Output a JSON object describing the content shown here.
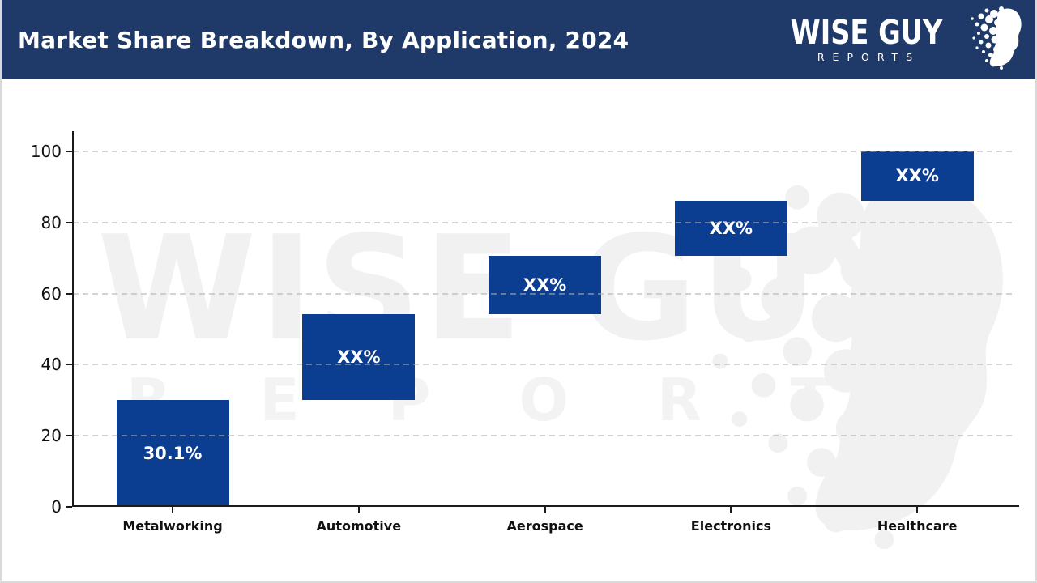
{
  "header": {
    "title": "Market Share Breakdown, By Application, 2024",
    "logo": {
      "line1": "WISE GUY",
      "line2": "REPORTS"
    }
  },
  "watermark": {
    "line1": "WISE GUY",
    "line2": "REPORTS"
  },
  "theme": {
    "header_bg": "#1f3a68",
    "bar_color": "#0b3d91",
    "bar_label_color": "#ffffff",
    "axis_color": "#1a1a1a",
    "grid_color": "#bdbdbd",
    "watermark_color": "#f1f1f1"
  },
  "chart_data": {
    "type": "bar",
    "subtype": "waterfall",
    "title": "Market Share Breakdown, By Application, 2024",
    "categories": [
      "Metalworking",
      "Automotive",
      "Aerospace",
      "Electronics",
      "Healthcare"
    ],
    "segments": [
      {
        "category": "Metalworking",
        "start": 0,
        "end": 30.1,
        "label": "30.1%"
      },
      {
        "category": "Automotive",
        "start": 30.1,
        "end": 54.3,
        "label": "XX%"
      },
      {
        "category": "Aerospace",
        "start": 54.3,
        "end": 70.7,
        "label": "XX%"
      },
      {
        "category": "Electronics",
        "start": 70.7,
        "end": 86.2,
        "label": "XX%"
      },
      {
        "category": "Healthcare",
        "start": 86.2,
        "end": 100,
        "label": "XX%"
      }
    ],
    "xlabel": "",
    "ylabel": "",
    "ylim": [
      0,
      100
    ],
    "yticks": [
      0,
      20,
      40,
      60,
      80,
      100
    ],
    "grid": "dashed-horizontal",
    "legend": "none"
  }
}
